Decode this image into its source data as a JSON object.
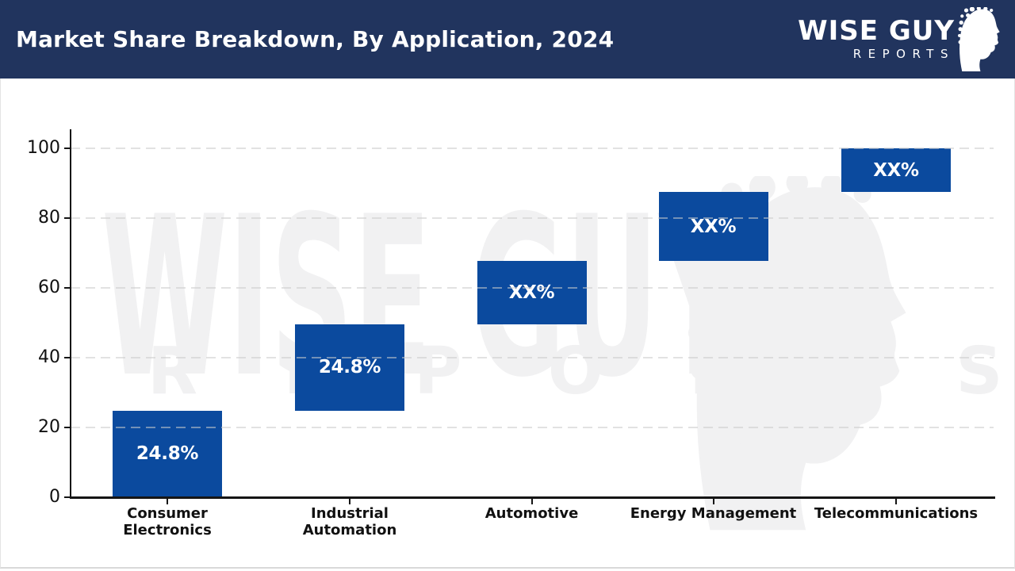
{
  "header": {
    "title": "Market Share Breakdown, By Application, 2024",
    "bg_color": "#21345e",
    "logo": {
      "name_line": "WISE GUY",
      "sub_line": "REPORTS"
    }
  },
  "watermark": {
    "name_line": "WISE GUY",
    "sub_line": "R E P O R T S"
  },
  "chart_data": {
    "type": "bar",
    "subtype": "floating-waterfall-bars",
    "title": "Market Share Breakdown, By Application, 2024",
    "categories": [
      "Consumer\nElectronics",
      "Industrial\nAutomation",
      "Automotive",
      "Energy Management",
      "Telecommunications"
    ],
    "segments": [
      {
        "category": "Consumer Electronics",
        "start": 0,
        "end": 24.8,
        "label": "24.8%"
      },
      {
        "category": "Industrial Automation",
        "start": 24.8,
        "end": 49.6,
        "label": "24.8%"
      },
      {
        "category": "Automotive",
        "start": 49.6,
        "end": 67.6,
        "label": "XX%"
      },
      {
        "category": "Energy Management",
        "start": 67.6,
        "end": 87.5,
        "label": "XX%"
      },
      {
        "category": "Telecommunications",
        "start": 87.5,
        "end": 100,
        "label": "XX%"
      }
    ],
    "yticks": [
      0,
      20,
      40,
      60,
      80,
      100
    ],
    "ylim": [
      0,
      105.5
    ],
    "xlabel": "",
    "ylabel": "",
    "grid": "horizontal-dashed",
    "legend": "none",
    "bar_color": "#0b4a9e",
    "bar_label_color": "#ffffff",
    "axis_color": "#151515"
  }
}
